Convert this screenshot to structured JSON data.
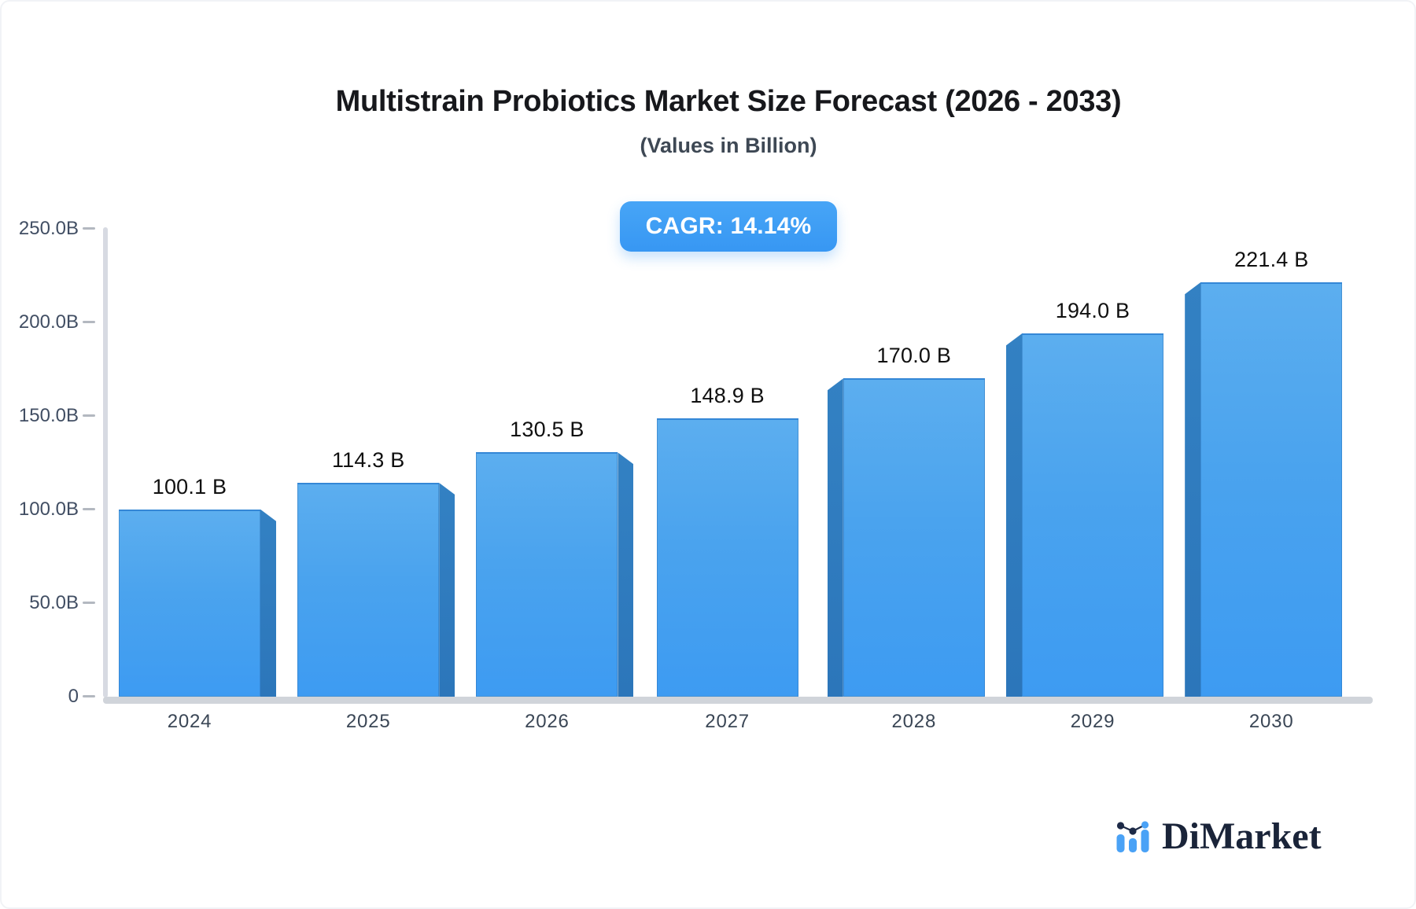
{
  "header": {
    "title": "Multistrain Probiotics Market Size Forecast (2026 - 2033)",
    "subtitle": "(Values in Billion)"
  },
  "badge": {
    "label": "CAGR: 14.14%"
  },
  "chart_data": {
    "type": "bar",
    "title": "Multistrain Probiotics Market Size Forecast (2026 - 2033)",
    "subtitle": "(Values in Billion)",
    "cagr_percent": 14.14,
    "categories": [
      "2024",
      "2025",
      "2026",
      "2027",
      "2028",
      "2029",
      "2030"
    ],
    "values": [
      100.1,
      114.3,
      130.5,
      148.9,
      170.0,
      194.0,
      221.4
    ],
    "value_labels": [
      "100.1 B",
      "114.3 B",
      "130.5 B",
      "148.9 B",
      "170.0 B",
      "194.0 B",
      "221.4 B"
    ],
    "y_axis": {
      "range": [
        0,
        250
      ],
      "ticks": [
        {
          "label": "250.0B",
          "value": 250
        },
        {
          "label": "200.0B",
          "value": 200
        },
        {
          "label": "150.0B",
          "value": 150
        },
        {
          "label": "100.0B",
          "value": 100
        },
        {
          "label": "50.0B",
          "value": 50
        },
        {
          "label": "0",
          "value": 0
        }
      ]
    },
    "grid": "off",
    "legend": "none",
    "bar_face_color": "#46a0f1",
    "bar_side_color": "#2e7abc"
  },
  "brand": {
    "name": "DiMarket",
    "icon": "bar-chart-with-trend-icon",
    "text_color": "#1a2439",
    "accent_color": "#4aa2f6"
  }
}
